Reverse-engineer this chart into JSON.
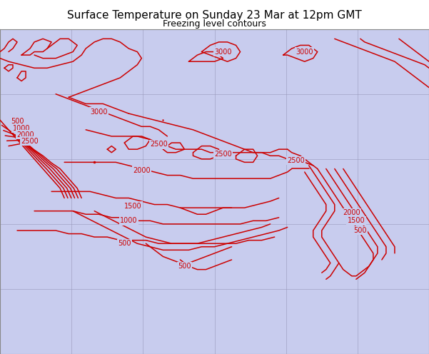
{
  "title": "Surface Temperature on Sunday 23 Mar at 12pm GMT",
  "subtitle": "Freezing level contours",
  "map_bg": "#c8ccee",
  "contour_color": "#cc0000",
  "contour_linewidth": 1.1,
  "title_fontsize": 11,
  "subtitle_fontsize": 9,
  "grid_color": "#9999bb",
  "grid_linewidth": 0.4,
  "figsize": [
    6.01,
    4.96
  ],
  "dpi": 100,
  "label_fontsize": 7,
  "label_bg": "#c8ccee"
}
